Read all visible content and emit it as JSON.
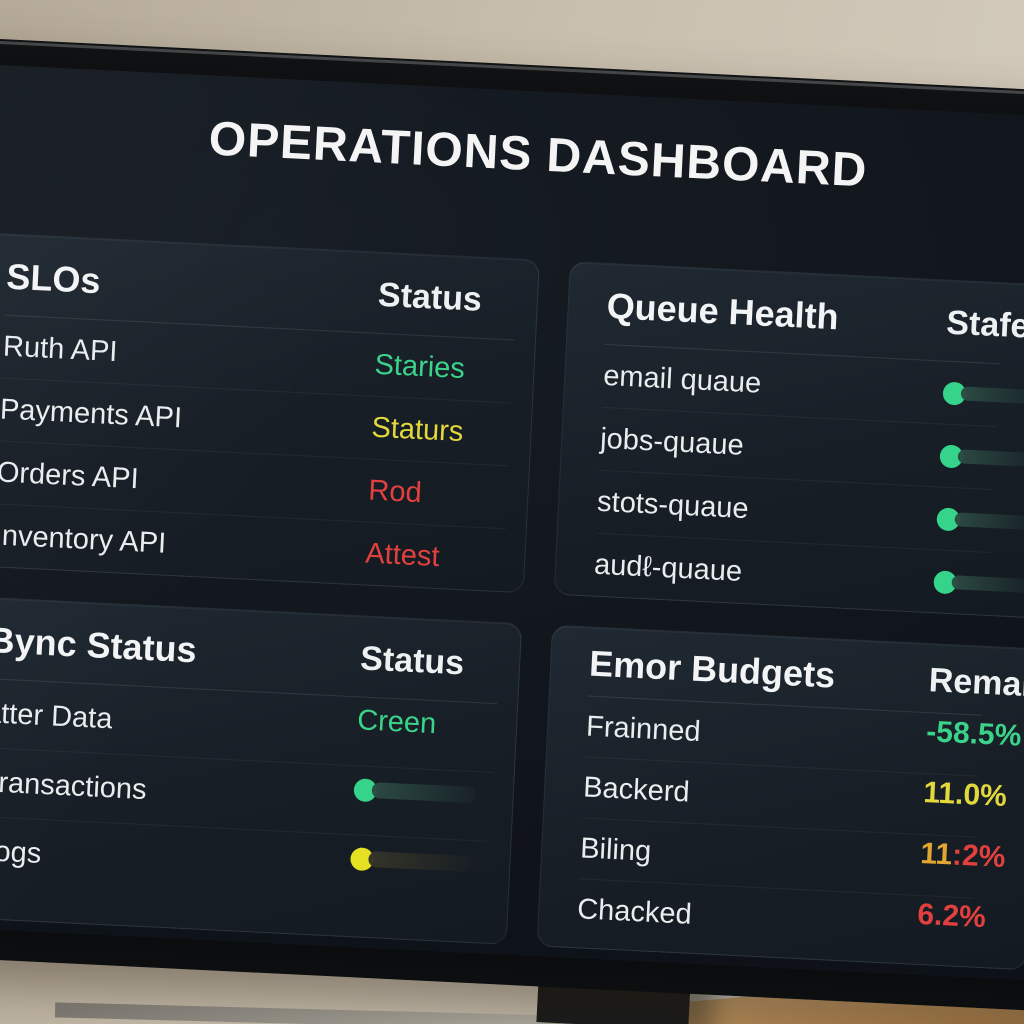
{
  "title": "OPERATIONS DASHBOARD",
  "colors": {
    "green": "#3bd389",
    "yellow": "#e3d83b",
    "red": "#e2403e",
    "orange": "#e2a52f",
    "dot_green": "#35d48a",
    "dot_yellow": "#e4e122",
    "bar_teal": "#2c4a43",
    "bar_dark": "#343428"
  },
  "panels": {
    "slos": {
      "title": "SLOs",
      "column": "Status",
      "rows": [
        {
          "label": "Ruth API",
          "status": "Staries",
          "color": "green"
        },
        {
          "label": "Payments API",
          "status": "Staturs",
          "color": "yellow"
        },
        {
          "label": "Orders API",
          "status": "Rod",
          "color": "red"
        },
        {
          "label": "Inventory API",
          "status": "Attest",
          "color": "red"
        }
      ]
    },
    "queue_health": {
      "title": "Queue Health",
      "column": "Stafe",
      "rows": [
        {
          "label": "email quaue",
          "indicator": "green"
        },
        {
          "label": "jobs-quaue",
          "indicator": "green"
        },
        {
          "label": "stots-quaue",
          "indicator": "green"
        },
        {
          "label": "audℓ-quaue",
          "indicator": "green"
        }
      ]
    },
    "sync_status": {
      "title": "Bync Status",
      "column": "Status",
      "rows": [
        {
          "label": "atter Data",
          "status": "Creen",
          "color": "green"
        },
        {
          "label": "Transactions",
          "indicator": "green"
        },
        {
          "label": "Logs",
          "indicator": "yellow"
        }
      ]
    },
    "error_budgets": {
      "title": "Emor Budgets",
      "column": "Remaining",
      "rows": [
        {
          "label": "Frainned",
          "value": "-58.5%",
          "color": "green"
        },
        {
          "label": "Backerd",
          "value": "11.0%",
          "color": "yellow"
        },
        {
          "label": "Biling",
          "value": "11",
          "value2": ":2%",
          "color": "orange",
          "color2": "red"
        },
        {
          "label": "Chacked",
          "value": "6.2%",
          "color": "red"
        }
      ]
    }
  }
}
